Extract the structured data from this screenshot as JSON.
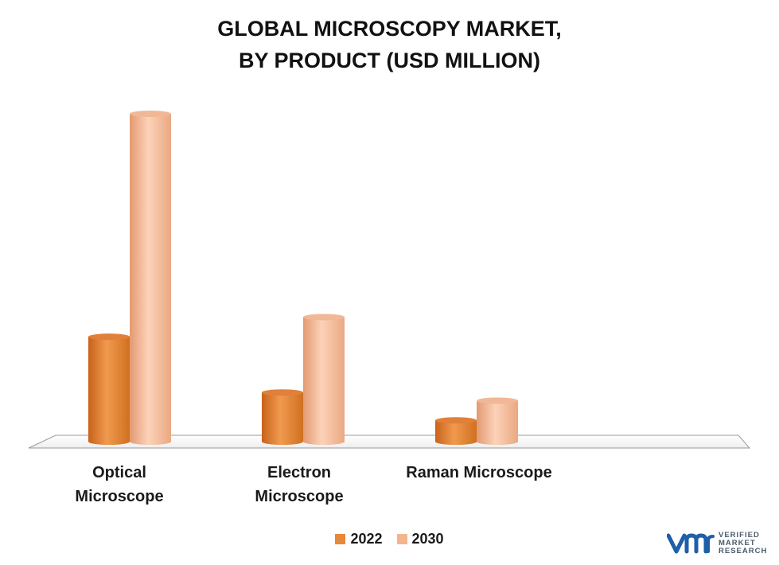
{
  "chart_data": {
    "type": "bar",
    "title_line1": "GLOBAL MICROSCOPY MARKET,",
    "title_line2": "BY PRODUCT (USD MILLION)",
    "categories": [
      "Optical Microscope",
      "Electron Microscope",
      "Raman Microscope"
    ],
    "category_lines": [
      [
        "Optical",
        "Microscope"
      ],
      [
        "Electron",
        "Microscope"
      ],
      [
        "Raman Microscope"
      ]
    ],
    "series": [
      {
        "name": "2022",
        "values": [
          32,
          15,
          6.5
        ],
        "color": "#e8883a"
      },
      {
        "name": "2030",
        "values": [
          100,
          38,
          12.5
        ],
        "color": "#f5b48e"
      }
    ],
    "ylim": [
      0,
      100
    ],
    "grid": false,
    "legend_position": "bottom-center"
  },
  "legend": {
    "label_2022": "2022",
    "label_2030": "2030"
  },
  "branding": {
    "logo_text_line1": "VERIFIED",
    "logo_text_line2": "MARKET",
    "logo_text_line3": "RESEARCH",
    "logo_color": "#1f5fa8"
  }
}
